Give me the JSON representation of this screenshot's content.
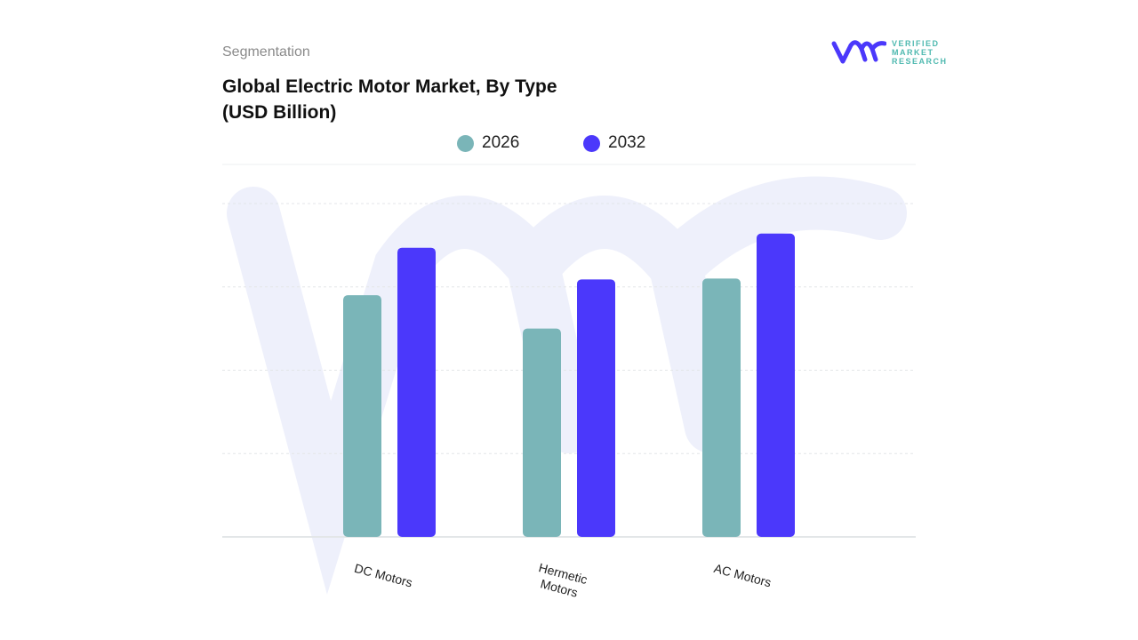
{
  "header": {
    "segment_label": "Segmentation",
    "title_line1": "Global Electric Motor Market, By Type",
    "title_line2": "(USD Billion)"
  },
  "logo": {
    "text_lines": [
      "VERIFIED",
      "MARKET",
      "RESEARCH"
    ],
    "icon": "vmr-logo-icon"
  },
  "chart_data": {
    "type": "bar",
    "title": "Global Electric Motor Market, By Type (USD Billion)",
    "categories": [
      "DC Motors",
      "Hermetic Motors",
      "AC Motors"
    ],
    "category_label_lines": [
      [
        "DC Motors"
      ],
      [
        "Hermetic",
        "Motors"
      ],
      [
        "AC Motors"
      ]
    ],
    "series": [
      {
        "name": "2026",
        "color": "#7ab5b8",
        "values": [
          2.9,
          2.5,
          3.1
        ]
      },
      {
        "name": "2032",
        "color": "#4b38fb",
        "values": [
          3.47,
          3.09,
          3.64
        ]
      }
    ],
    "ylim": [
      0,
      4
    ],
    "y_tick_labels_shown": false,
    "grid": true,
    "legend_position": "top-center",
    "xlabel": "",
    "ylabel": ""
  }
}
